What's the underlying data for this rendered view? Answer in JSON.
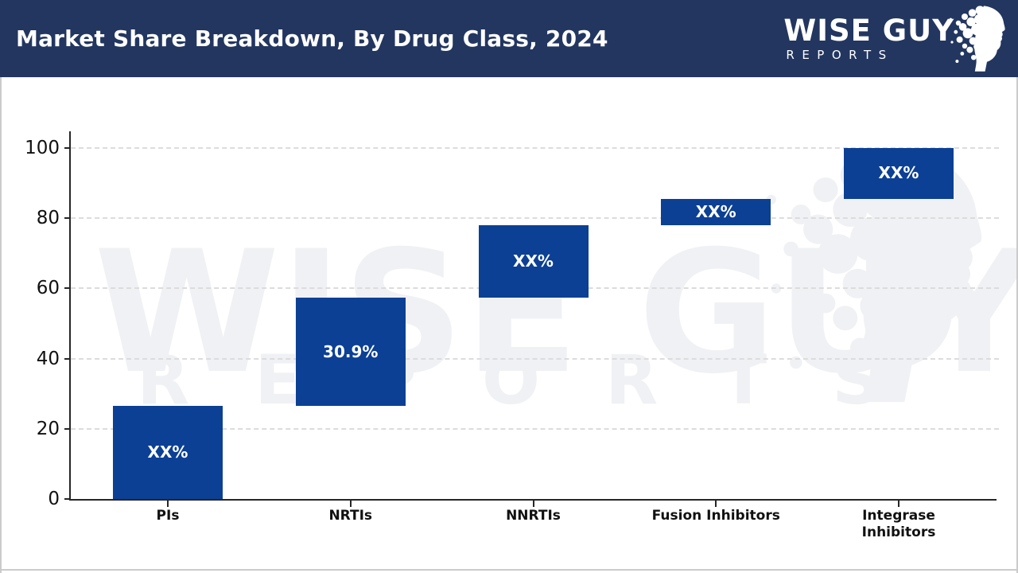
{
  "header": {
    "title": "Market Share Breakdown, By Drug Class, 2024",
    "logo": {
      "brand_line1": "WISE GUY",
      "brand_line2": "REPORTS"
    }
  },
  "watermark": {
    "brand_line1": "WISE GUY",
    "brand_line2": "REPORTS"
  },
  "colors": {
    "header_bg": "#223660",
    "bar_fill": "#0b4094",
    "bar_label_text": "#ffffff",
    "gridline": "#dcdcdc",
    "axis": "#262626",
    "tick_label": "#111111",
    "frame_border": "#cbcbcb",
    "watermark": "#f0f1f4"
  },
  "chart_data": {
    "type": "bar",
    "variant": "floating-waterfall",
    "title": "Market Share Breakdown, By Drug Class, 2024",
    "unit": "%",
    "categories": [
      "PIs",
      "NRTIs",
      "NNRTIs",
      "Fusion Inhibitors",
      "Integrase Inhibitors"
    ],
    "bars": [
      {
        "category": "PIs",
        "start": 0,
        "end": 26.5,
        "label": "XX%"
      },
      {
        "category": "NRTIs",
        "start": 26.5,
        "end": 57.4,
        "label": "30.9%"
      },
      {
        "category": "NNRTIs",
        "start": 57.4,
        "end": 78,
        "label": "XX%"
      },
      {
        "category": "Fusion Inhibitors",
        "start": 78,
        "end": 85.5,
        "label": "XX%"
      },
      {
        "category": "Integrase Inhibitors",
        "start": 85.5,
        "end": 100,
        "label": "XX%"
      }
    ],
    "xlabel": "",
    "ylabel": "",
    "ylim": [
      0,
      105
    ],
    "yticks": [
      0,
      20,
      40,
      60,
      80,
      100
    ],
    "grid": {
      "horizontal": true,
      "style": "dashed"
    },
    "legend": null
  }
}
